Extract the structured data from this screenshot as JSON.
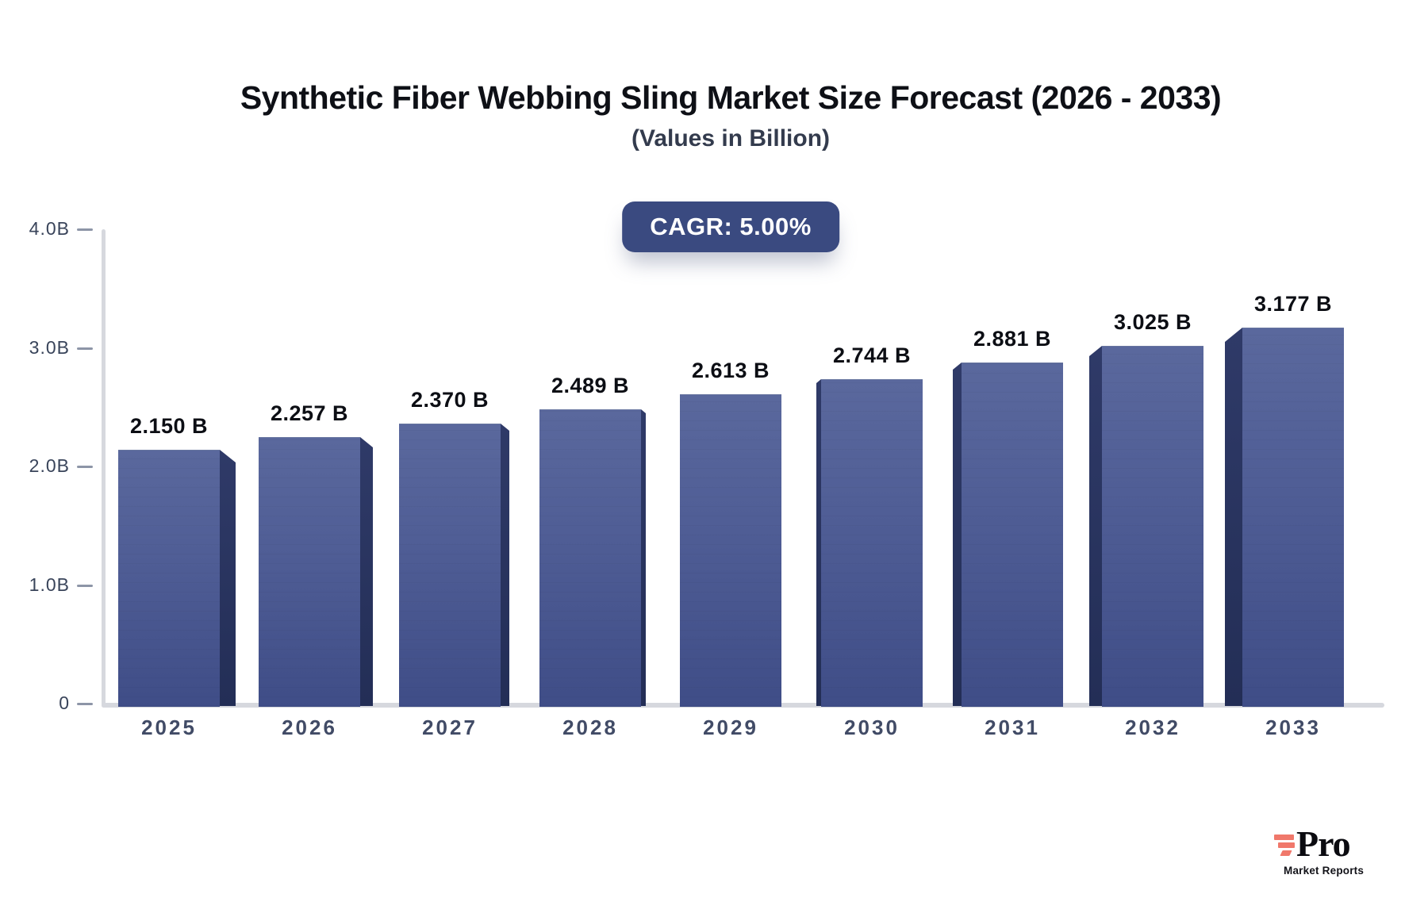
{
  "chart_data": {
    "type": "bar",
    "title": "Synthetic Fiber Webbing Sling Market Size Forecast (2026 - 2033)",
    "subtitle": "(Values in Billion)",
    "annotation": "CAGR: 5.00%",
    "unit": "Billion",
    "categories": [
      "2025",
      "2026",
      "2027",
      "2028",
      "2029",
      "2030",
      "2031",
      "2032",
      "2033"
    ],
    "values": [
      2.15,
      2.257,
      2.37,
      2.489,
      2.613,
      2.744,
      2.881,
      3.025,
      3.177
    ],
    "value_labels": [
      "2.150 B",
      "2.257 B",
      "2.370 B",
      "2.489 B",
      "2.613 B",
      "2.744 B",
      "2.881 B",
      "3.025 B",
      "3.177 B"
    ],
    "ylim": [
      0,
      4.0
    ],
    "yticks": [
      {
        "label": "4.0B",
        "value": 4.0
      },
      {
        "label": "3.0B",
        "value": 3.0
      },
      {
        "label": "2.0B",
        "value": 2.0
      },
      {
        "label": "1.0B",
        "value": 1.0
      },
      {
        "label": "0",
        "value": 0
      }
    ],
    "grid": false,
    "legend": false,
    "bar_style": "3d-extruded-perspective"
  },
  "colors": {
    "bar_face_top": "#5a689d",
    "bar_face_bottom": "#3f4d87",
    "bar_side_dark": "#27325d",
    "badge_background": "#3a4a80",
    "badge_text": "#ffffff",
    "axis_line": "#d6d8de",
    "tick_dash": "#8d95a7",
    "value_label": "#0c0e14",
    "year_label": "#414b66",
    "ytick_label": "#39445a",
    "logo_accent": "#f0786b"
  },
  "footer_logo": {
    "text": "Pro",
    "subtext": "Market Reports"
  }
}
